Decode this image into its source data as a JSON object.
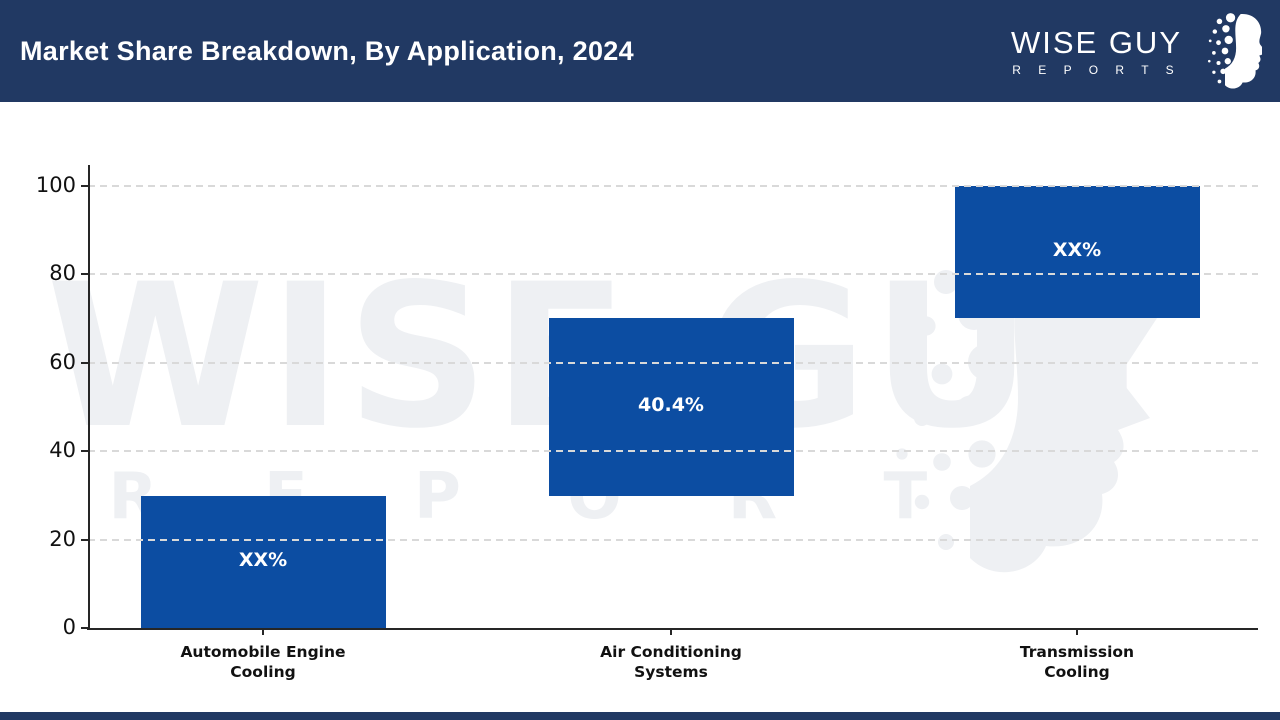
{
  "header": {
    "title": "Market Share Breakdown, By Application, 2024",
    "logo_line1": "WISE GUY",
    "logo_line2": "R E P O R T S"
  },
  "watermark": {
    "line1": "WISE GUY",
    "line2": "R E P O R T S"
  },
  "chart_data": {
    "type": "bar",
    "subtype": "floating-segment (waterfall style, segments stack to 100%)",
    "title": "Market Share Breakdown, By Application, 2024",
    "xlabel": "",
    "ylabel": "",
    "ylim": [
      0,
      100
    ],
    "yticks": [
      0,
      20,
      40,
      60,
      80,
      100
    ],
    "grid": "horizontal dashed lines drawn over bars",
    "legend_position": "none",
    "categories": [
      "Automobile Engine Cooling",
      "Air Conditioning Systems",
      "Transmission Cooling"
    ],
    "category_lines": [
      [
        "Automobile Engine",
        "Cooling"
      ],
      [
        "Air Conditioning",
        "Systems"
      ],
      [
        "Transmission",
        "Cooling"
      ]
    ],
    "segments": [
      {
        "category": "Automobile Engine Cooling",
        "base": 0,
        "height": 29.8,
        "label": "XX%"
      },
      {
        "category": "Air Conditioning Systems",
        "base": 29.8,
        "height": 40.4,
        "label": "40.4%"
      },
      {
        "category": "Transmission Cooling",
        "base": 70.2,
        "height": 29.8,
        "label": "XX%"
      }
    ],
    "bar_color": "#0c4da2",
    "bar_label_color": "#ffffff"
  },
  "colors": {
    "header_bg": "#213963",
    "footer_bg": "#213963",
    "bar": "#0c4da2",
    "axis": "#262626",
    "gridline": "#d9d9d9",
    "watermark": "#eef0f3"
  }
}
